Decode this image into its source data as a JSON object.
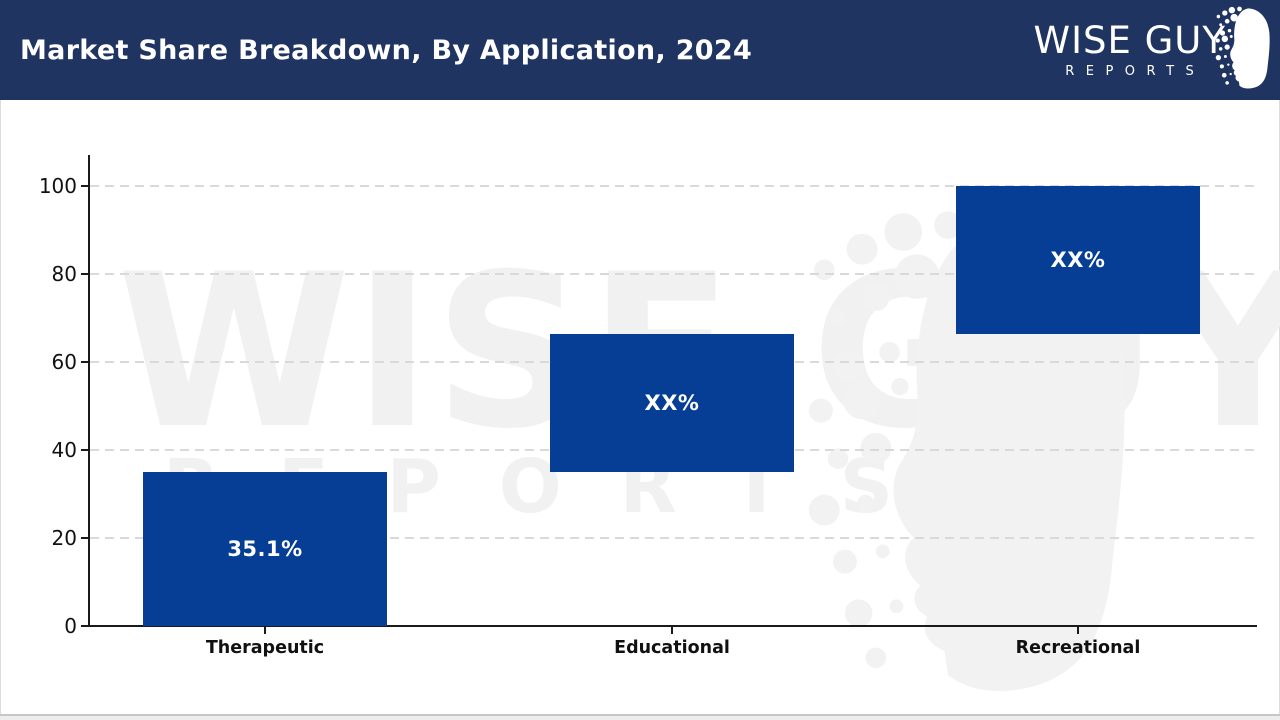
{
  "header": {
    "title": "Market Share Breakdown, By Application, 2024",
    "logo": {
      "brand_line1": "WISE GUY",
      "brand_line2": "REPORTS",
      "face_icon": "face-profile-dots-icon"
    }
  },
  "watermark": {
    "line1": "WISE GUY",
    "line2": "REPORTS",
    "face_icon": "face-profile-dots-icon"
  },
  "chart_data": {
    "type": "bar",
    "subtype": "floating-waterfall",
    "title": "Market Share Breakdown, By Application, 2024",
    "categories": [
      "Therapeutic",
      "Educational",
      "Recreational"
    ],
    "segments": [
      {
        "category": "Therapeutic",
        "start": 0,
        "end": 35.1,
        "label": "35.1%",
        "masked": false
      },
      {
        "category": "Educational",
        "start": 35.1,
        "end": 66.3,
        "label": "XX%",
        "masked": true
      },
      {
        "category": "Recreational",
        "start": 66.3,
        "end": 100,
        "label": "XX%",
        "masked": true
      }
    ],
    "xlabel": "",
    "ylabel": "",
    "ylim": [
      0,
      107
    ],
    "y_ticks": [
      0,
      20,
      40,
      60,
      80,
      100
    ],
    "grid": "horizontal-dashed",
    "legend": "none",
    "bar_color": "#053E94",
    "label_color": "#ffffff"
  },
  "colors": {
    "header_bg": "#203461",
    "bar_fill": "#053E94",
    "grid_line": "#d9d9d9",
    "axis_line": "#1a1a1a",
    "watermark": "#f1f1f1",
    "page_bg": "#ffffff"
  }
}
